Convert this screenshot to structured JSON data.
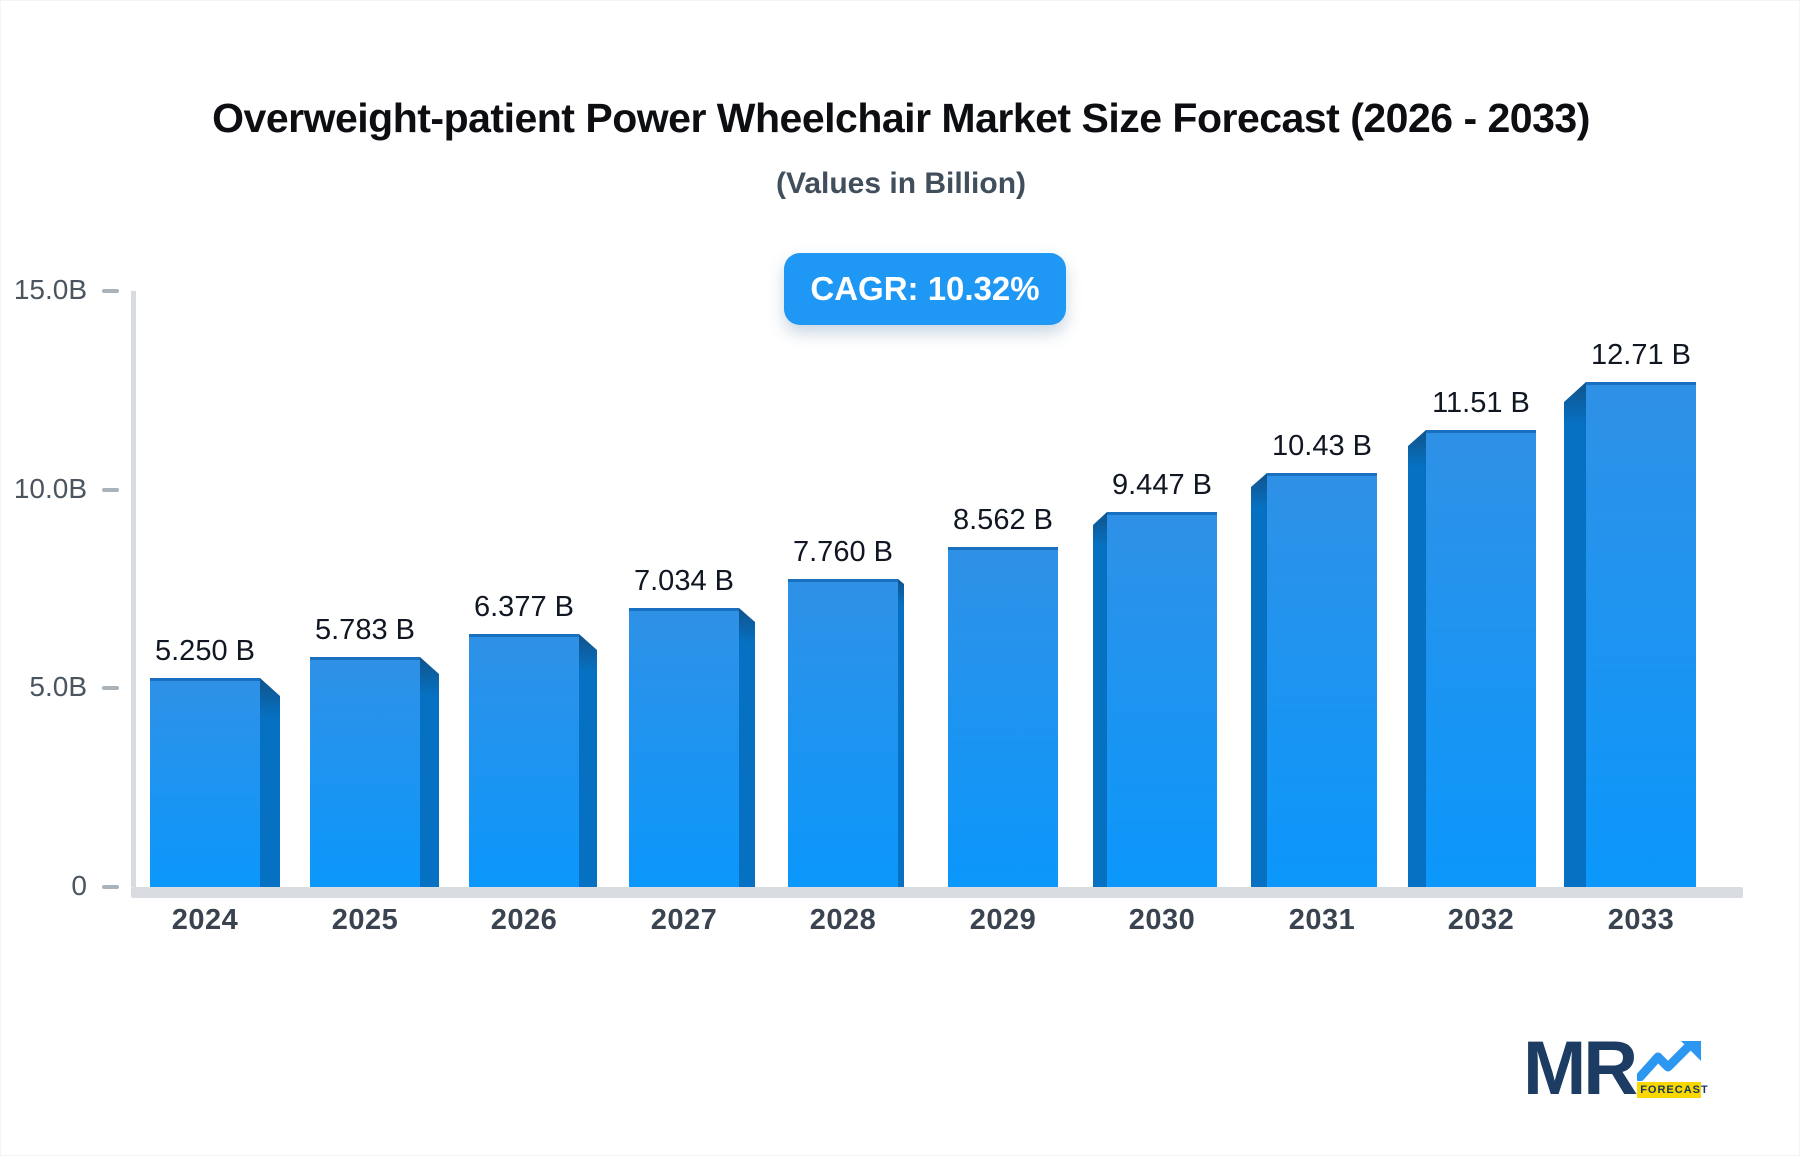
{
  "header": {
    "title": "Overweight-patient Power Wheelchair Market Size Forecast (2026 - 2033)",
    "subtitle": "(Values in Billion)"
  },
  "cagr_badge": {
    "label": "CAGR: 10.32%"
  },
  "chart_data": {
    "type": "bar",
    "title": "Overweight-patient Power Wheelchair Market Size Forecast (2026 - 2033)",
    "subtitle": "(Values in Billion)",
    "categories": [
      "2024",
      "2025",
      "2026",
      "2027",
      "2028",
      "2029",
      "2030",
      "2031",
      "2032",
      "2033"
    ],
    "values": [
      5.25,
      5.783,
      6.377,
      7.034,
      7.76,
      8.562,
      9.447,
      10.43,
      11.51,
      12.71
    ],
    "bar_labels": [
      "5.250 B",
      "5.783 B",
      "6.377 B",
      "7.034 B",
      "7.760 B",
      "8.562 B",
      "9.447 B",
      "10.43 B",
      "11.51 B",
      "12.71 B"
    ],
    "xlabel": "",
    "ylabel": "",
    "ylim": [
      0,
      15
    ],
    "yticks": [
      {
        "label": "15.0B",
        "value": 15
      },
      {
        "label": "10.0B",
        "value": 10
      },
      {
        "label": "5.0B",
        "value": 5
      },
      {
        "label": "0",
        "value": 0
      }
    ],
    "grid": false,
    "legend_position": "none",
    "cagr": "10.32%",
    "colors": {
      "bar_gradient_top": "#2f91e6",
      "bar_gradient_bottom": "#0b97fb",
      "bar_side_dark": "#0671c3",
      "bar_side_bevel": "#11538a",
      "badge_blue": "#1f97f4",
      "axis_gray": "#d8dce1"
    }
  },
  "logo": {
    "text_mr": "MR",
    "text_forecast": "FORECAST",
    "arrow_icon": "trend-up-arrow-icon",
    "colors": {
      "navy": "#1d3c63",
      "yellow": "#f8d800",
      "arrow_blue": "#2b97f0"
    }
  }
}
